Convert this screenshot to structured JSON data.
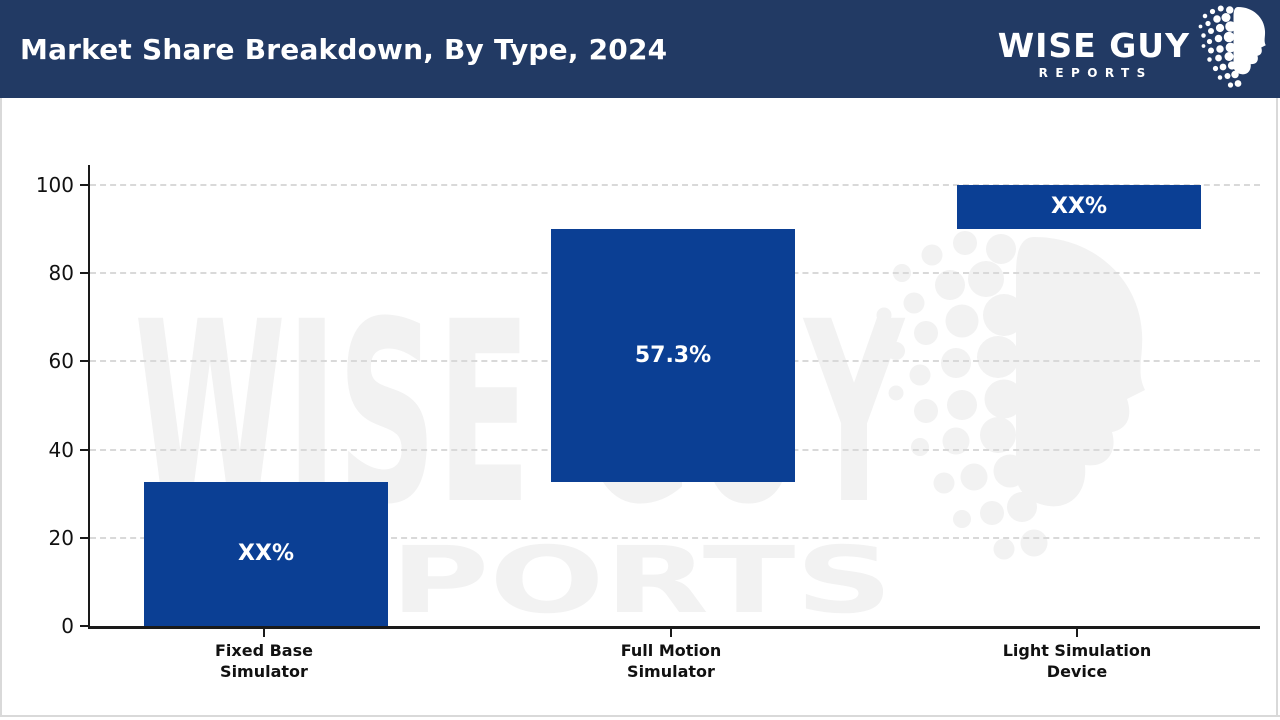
{
  "header": {
    "title": "Market Share Breakdown, By Type, 2024",
    "logo": {
      "brand": "WISE GUY",
      "sub": "REPORTS"
    }
  },
  "watermark": {
    "brand": "WISE GUY",
    "sub": "REPORTS"
  },
  "colors": {
    "header_bg": "#223a64",
    "bar": "#0b3f94",
    "grid": "#d9d9d9",
    "axis": "#1a1a1a",
    "bar_label": "#ffffff",
    "watermark": "#f2f2f2"
  },
  "chart_data": {
    "type": "bar",
    "variant": "floating-segment-bars",
    "title": "Market Share Breakdown, By Type, 2024",
    "categories": [
      "Fixed Base\nSimulator",
      "Full Motion\nSimulator",
      "Light Simulation\nDevice"
    ],
    "bars": [
      {
        "category": "Fixed Base Simulator",
        "start": 0,
        "end": 32.7,
        "label": "XX%"
      },
      {
        "category": "Full Motion Simulator",
        "start": 32.7,
        "end": 90,
        "label": "57.3%"
      },
      {
        "category": "Light Simulation Device",
        "start": 90,
        "end": 100,
        "label": "XX%"
      }
    ],
    "y_ticks": [
      0,
      20,
      40,
      60,
      80,
      100
    ],
    "ylim": [
      0,
      104.5
    ],
    "xlabel": "",
    "ylabel": "",
    "grid": "horizontal-dashed",
    "legend": "none"
  }
}
